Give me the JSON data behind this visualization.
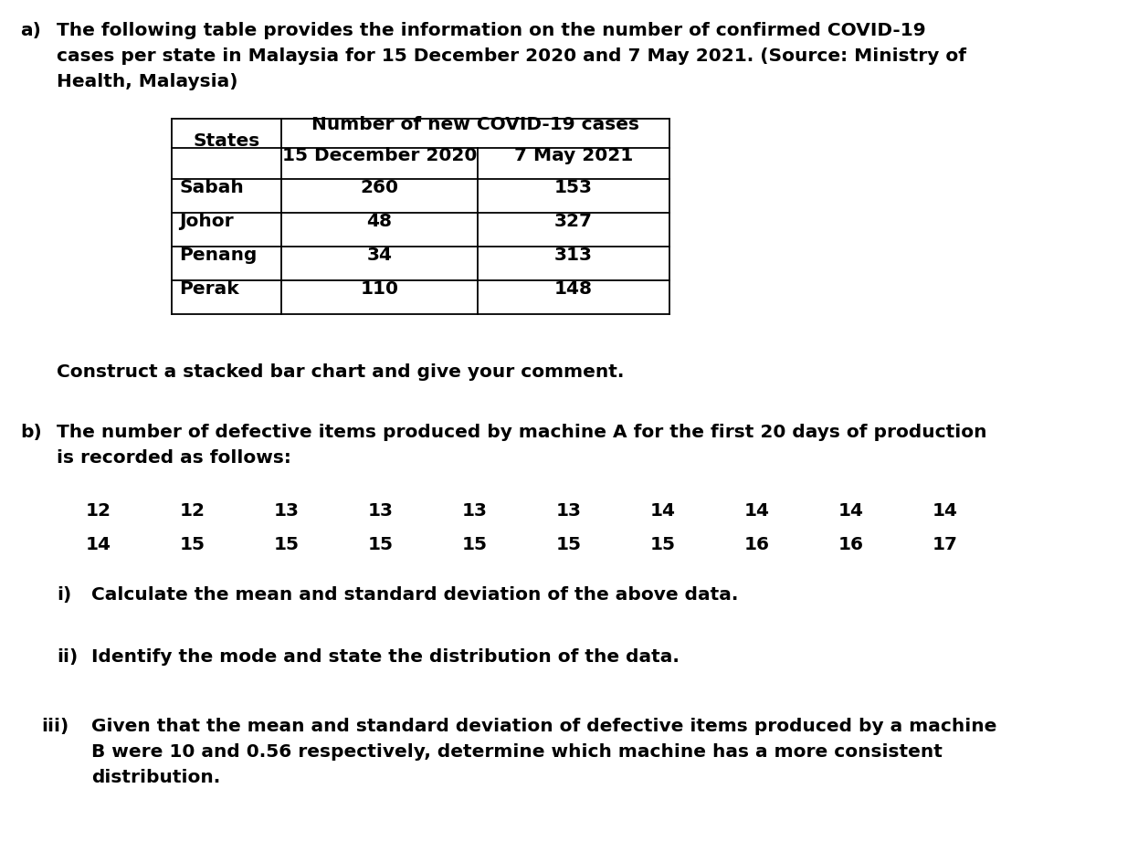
{
  "bg_color": "#ffffff",
  "part_a_label": "a)",
  "part_a_line1": "The following table provides the information on the number of confirmed COVID-19",
  "part_a_line2": "cases per state in Malaysia for 15 December 2020 and 7 May 2021. (Source: Ministry of",
  "part_a_line3": "Health, Malaysia)",
  "table_header_top": "Number of new COVID-19 cases",
  "table_col0_header": "States",
  "table_col1_header": "15 December 2020",
  "table_col2_header": "7 May 2021",
  "table_rows": [
    [
      "Sabah",
      "260",
      "153"
    ],
    [
      "Johor",
      "48",
      "327"
    ],
    [
      "Penang",
      "34",
      "313"
    ],
    [
      "Perak",
      "110",
      "148"
    ]
  ],
  "part_a_instruction": "Construct a stacked bar chart and give your comment.",
  "part_b_label": "b)",
  "part_b_line1": "The number of defective items produced by machine A for the first 20 days of production",
  "part_b_line2": "is recorded as follows:",
  "data_row1": [
    "12",
    "12",
    "13",
    "13",
    "13",
    "13",
    "14",
    "14",
    "14",
    "14"
  ],
  "data_row2": [
    "14",
    "15",
    "15",
    "15",
    "15",
    "15",
    "15",
    "16",
    "16",
    "17"
  ],
  "sub_i_label": "i)",
  "sub_i_text": "Calculate the mean and standard deviation of the above data.",
  "sub_ii_label": "ii)",
  "sub_ii_text": "Identify the mode and state the distribution of the data.",
  "sub_iii_label": "iii)",
  "sub_iii_line1": "Given that the mean and standard deviation of defective items produced by a machine",
  "sub_iii_line2": "B were 10 and 0.56 respectively, determine which machine has a more consistent",
  "sub_iii_line3": "distribution.",
  "font_size": 14.5,
  "text_color": "#000000"
}
